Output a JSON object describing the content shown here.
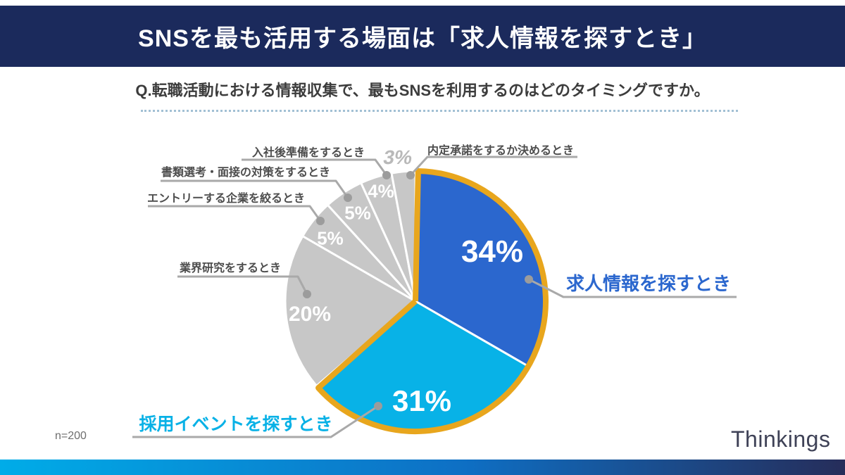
{
  "header": {
    "title": "SNSを最も活用する場面は「求人情報を探すとき」"
  },
  "question": {
    "text": "Q.転職活動における情報収集で、最もSNSを利用するのはどのタイミングですか。"
  },
  "footer": {
    "sample_size": "n=200",
    "logo": "Thinkings"
  },
  "colors": {
    "header_background": "#1b2a5c",
    "highlight_blue": "#2b67ce",
    "highlight_cyan": "#08b1e6",
    "pie_gray": "#c7c7c7",
    "gold_outline": "#e8a61d",
    "callout_gray": "#a9a9a9",
    "bottom_bar_gradient_left": "#00ace8",
    "bottom_bar_gradient_right": "#262d5a"
  },
  "chart_data": {
    "type": "pie",
    "title": "Q.転職活動における情報収集で、最もSNSを利用するのはどのタイミングですか。",
    "sample_size": 200,
    "clockwise_from_top": true,
    "highlight_outline_color": "#e8a61d",
    "slices": [
      {
        "label": "求人情報を探すとき",
        "value": 34,
        "pct_label": "34%",
        "color": "#2b67ce",
        "emphasis": true
      },
      {
        "label": "採用イベントを探すとき",
        "value": 31,
        "pct_label": "31%",
        "color": "#08b2e7",
        "emphasis": true
      },
      {
        "label": "業界研究をするとき",
        "value": 20,
        "pct_label": "20%",
        "color": "#c7c7c7",
        "emphasis": false
      },
      {
        "label": "エントリーする企業を絞るとき",
        "value": 5,
        "pct_label": "5%",
        "color": "#c7c7c7",
        "emphasis": false
      },
      {
        "label": "書類選考・面接の対策をするとき",
        "value": 5,
        "pct_label": "5%",
        "color": "#c7c7c7",
        "emphasis": false
      },
      {
        "label": "入社後準備をするとき",
        "value": 4,
        "pct_label": "4%",
        "color": "#c7c7c7",
        "emphasis": false
      },
      {
        "label": "内定承諾をするか決めるとき",
        "value": 3,
        "pct_label": "3%",
        "color": "#c7c7c7",
        "emphasis": false
      }
    ]
  }
}
